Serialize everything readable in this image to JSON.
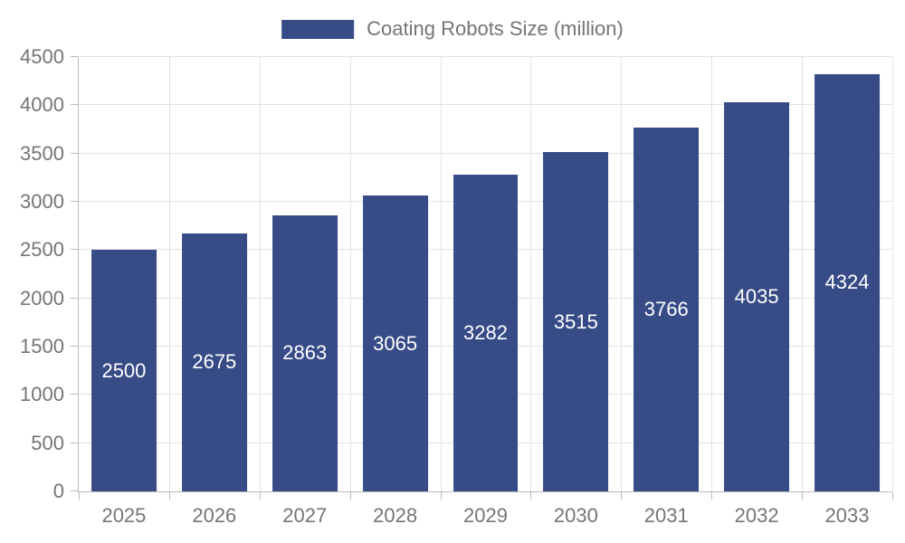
{
  "legend": {
    "label": "Coating Robots Size (million)"
  },
  "colors": {
    "background": "#ffffff",
    "bar": "#374b87",
    "bar_label": "#ffffff",
    "axis": "#b9b9b9",
    "grid": "#e3e3e3",
    "text": "#757575"
  },
  "chart_data": {
    "type": "bar",
    "title": "Coating Robots Size (million)",
    "categories": [
      "2025",
      "2026",
      "2027",
      "2028",
      "2029",
      "2030",
      "2031",
      "2032",
      "2033"
    ],
    "values": [
      2500,
      2675,
      2863,
      3065,
      3282,
      3515,
      3766,
      4035,
      4324
    ],
    "xlabel": "",
    "ylabel": "",
    "ylim": [
      0,
      4500
    ],
    "ytick_step": 500,
    "ytick_labels": [
      "0",
      "500",
      "1000",
      "1500",
      "2000",
      "2500",
      "3000",
      "3500",
      "4000",
      "4500"
    ],
    "grid": true,
    "legend_position": "top-center",
    "bar_label_position": "inside-middle",
    "bar_width_fraction": 0.72
  }
}
